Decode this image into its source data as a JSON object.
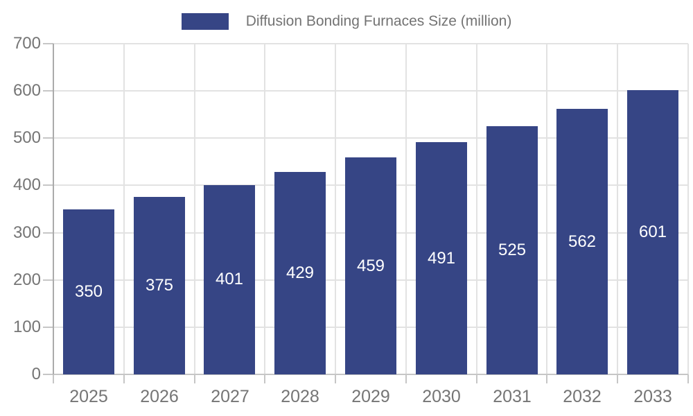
{
  "legend": {
    "label": "Diffusion Bonding Furnaces Size (million)"
  },
  "chart_data": {
    "type": "bar",
    "title": "Diffusion Bonding Furnaces Size (million)",
    "series_name": "Diffusion Bonding Furnaces Size (million)",
    "categories": [
      "2025",
      "2026",
      "2027",
      "2028",
      "2029",
      "2030",
      "2031",
      "2032",
      "2033"
    ],
    "values": [
      350,
      375,
      401,
      429,
      459,
      491,
      525,
      562,
      601
    ],
    "bar_labels": [
      "350",
      "375",
      "401",
      "429",
      "459",
      "491",
      "525",
      "562",
      "601"
    ],
    "xlabel": "",
    "ylabel": "",
    "ylim": [
      0,
      700
    ],
    "ytick_step": 100,
    "yticks": [
      0,
      100,
      200,
      300,
      400,
      500,
      600,
      700
    ],
    "grid": true,
    "legend_position": "top",
    "bar_labels_visible": true
  },
  "colors": {
    "bar": "#364585",
    "bar_label": "#FFFFFF",
    "axis_text": "#757575",
    "legend_text": "#737373",
    "gridline": "#E2E2E2",
    "y_axis_line": "#ABABAB",
    "x_axis_line": "#C6C6C6",
    "tick_line": "#C6C6C6",
    "background": "#FFFFFF"
  }
}
